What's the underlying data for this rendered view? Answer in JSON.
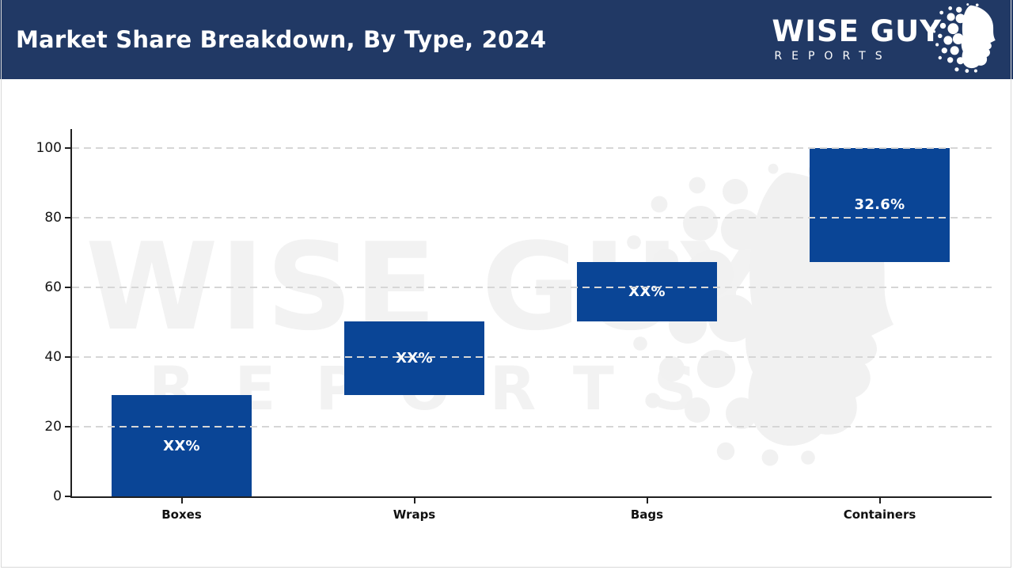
{
  "header": {
    "title": "Market Share Breakdown, By Type, 2024",
    "background": "#213965",
    "logo": {
      "line1": "WISE GUY",
      "line2": "REPORTS"
    }
  },
  "watermark": {
    "line1": "WISE GUY",
    "line2": "REPORTS",
    "color": "#f2f2f2"
  },
  "chart_data": {
    "type": "bar",
    "subtype": "waterfall",
    "title": "",
    "xlabel": "",
    "ylabel": "",
    "categories": [
      "Boxes",
      "Wraps",
      "Bags",
      "Containers"
    ],
    "segments": [
      {
        "category": "Boxes",
        "start": 0,
        "end": 29,
        "label": "XX%"
      },
      {
        "category": "Wraps",
        "start": 29,
        "end": 50.2,
        "label": "XX%"
      },
      {
        "category": "Bags",
        "start": 50.2,
        "end": 67.4,
        "label": "XX%"
      },
      {
        "category": "Containers",
        "start": 67.4,
        "end": 100,
        "label": "32.6%"
      }
    ],
    "yticks": [
      0,
      20,
      40,
      60,
      80,
      100
    ],
    "ylim": [
      0,
      105.5
    ],
    "grid": "horizontal-dashed",
    "legend": "none",
    "grid_color": "#d6d6d6",
    "axis_color": "#1f1f1f",
    "bar_color": "#0a4596",
    "bar_label_color": "#ffffff",
    "tick_label_color": "#161616"
  }
}
